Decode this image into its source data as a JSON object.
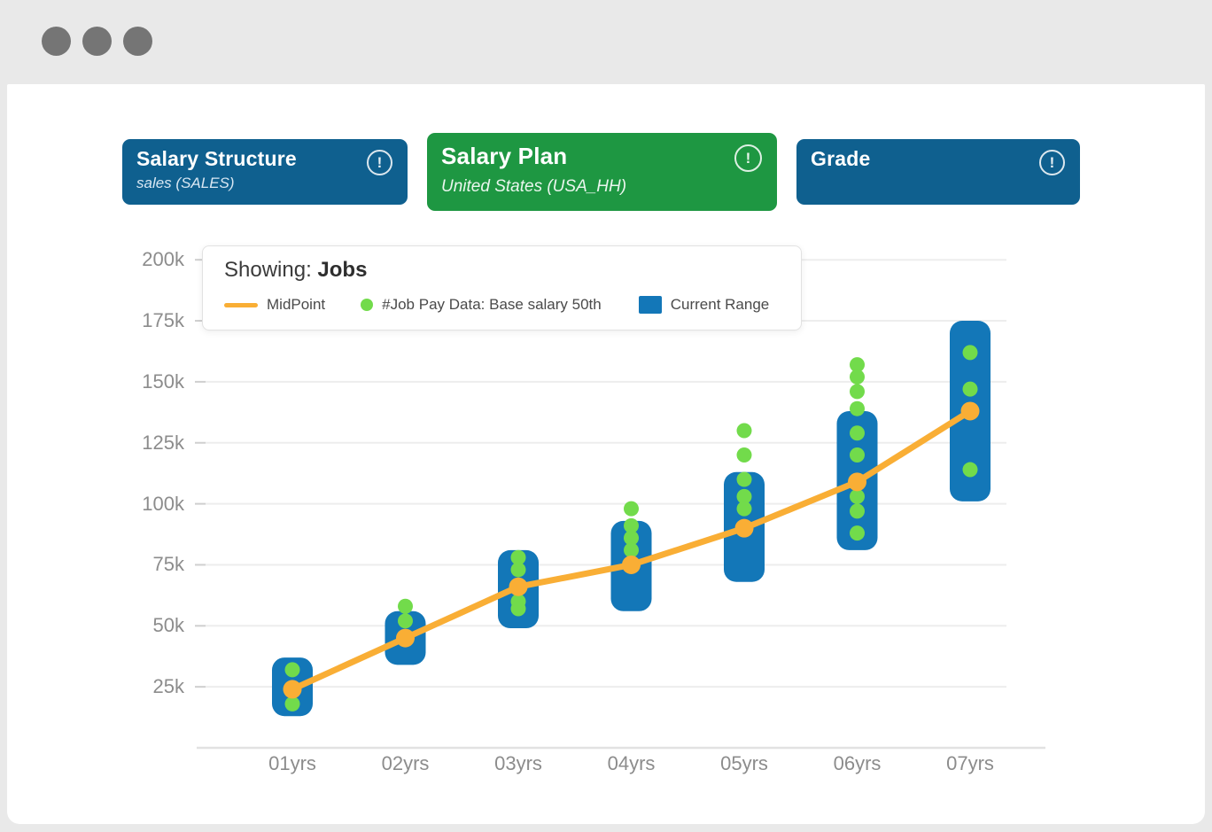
{
  "window": {
    "controls": [
      "window-dot-1",
      "window-dot-2",
      "window-dot-3"
    ]
  },
  "filters": [
    {
      "title": "Salary Structure",
      "subtitle": "sales (SALES)",
      "alert_icon": "!",
      "color": "#0f608f",
      "active": false
    },
    {
      "title": "Salary Plan",
      "subtitle": "United States (USA_HH)",
      "alert_icon": "!",
      "color": "#1e9742",
      "active": true
    },
    {
      "title": "Grade",
      "subtitle": "",
      "alert_icon": "!",
      "color": "#0f608f",
      "active": false
    }
  ],
  "legend": {
    "showing_label": "Showing:",
    "showing_value": "Jobs",
    "items": [
      {
        "label": "MidPoint",
        "swatch": "line",
        "color": "#f9ae35"
      },
      {
        "label": "#Job Pay Data: Base salary 50th",
        "swatch": "dot",
        "color": "#72db4b"
      },
      {
        "label": "Current Range",
        "swatch": "square",
        "color": "#1377b8"
      }
    ]
  },
  "chart_data": {
    "type": "combo",
    "categories": [
      "01yrs",
      "02yrs",
      "03yrs",
      "04yrs",
      "05yrs",
      "06yrs",
      "07yrs"
    ],
    "unit": "k",
    "yticks": [
      25,
      50,
      75,
      100,
      125,
      150,
      175,
      200
    ],
    "ylim": [
      0,
      203
    ],
    "grid": true,
    "legend_position": "top-left",
    "series": [
      {
        "name": "Current Range",
        "type": "bar-range",
        "color": "#1377b8",
        "ranges": [
          [
            13,
            37
          ],
          [
            34,
            56
          ],
          [
            49,
            81
          ],
          [
            56,
            93
          ],
          [
            68,
            113
          ],
          [
            81,
            138
          ],
          [
            101,
            175
          ]
        ]
      },
      {
        "name": "MidPoint",
        "type": "line",
        "color": "#f9ae35",
        "values": [
          24,
          45,
          66,
          75,
          90,
          109,
          138
        ]
      },
      {
        "name": "#Job Pay Data: Base salary 50th",
        "type": "scatter",
        "color": "#72db4b",
        "points": [
          [
            32,
            18
          ],
          [
            58,
            52
          ],
          [
            78,
            73,
            60,
            57
          ],
          [
            98,
            91,
            86,
            81
          ],
          [
            130,
            120,
            110,
            103,
            98
          ],
          [
            157,
            152,
            146,
            139,
            129,
            120,
            103,
            97,
            88
          ],
          [
            162,
            147,
            114
          ]
        ]
      }
    ]
  }
}
